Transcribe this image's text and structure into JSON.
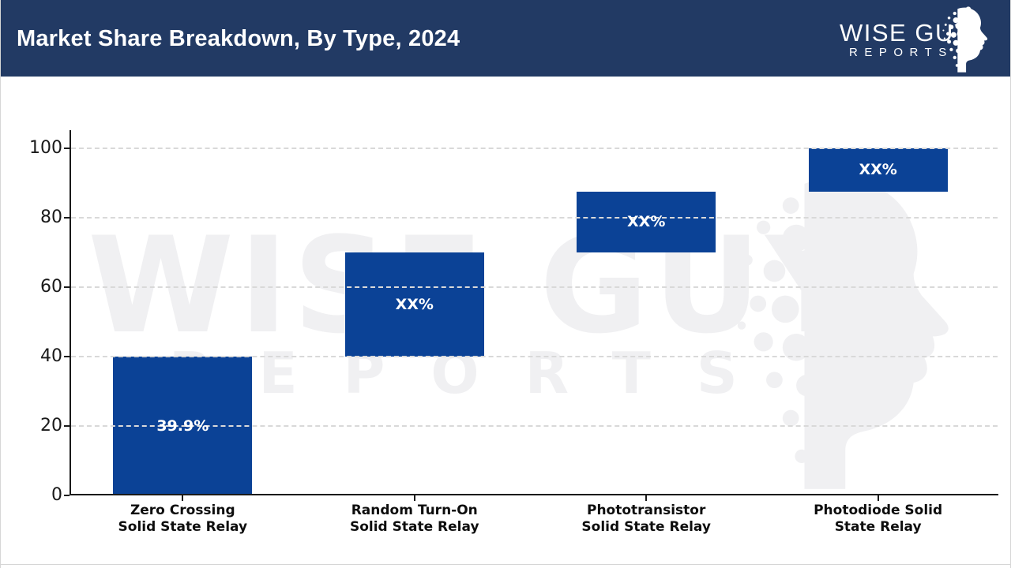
{
  "header": {
    "title": "Market Share Breakdown, By Type, 2024",
    "logo": {
      "name": "WISE GUY",
      "sub": "REPORTS"
    }
  },
  "watermark": {
    "big": "WISE GUY",
    "sub": "REPORTS"
  },
  "chart_data": {
    "type": "bar",
    "subtype": "floating-segment waterfall (cumulative market share)",
    "title": "Market Share Breakdown, By Type, 2024",
    "categories": [
      "Zero Crossing Solid State Relay",
      "Random Turn-On Solid State Relay",
      "Phototransistor Solid State Relay",
      "Photodiode Solid State Relay"
    ],
    "category_label_lines": [
      [
        "Zero Crossing",
        "Solid State Relay"
      ],
      [
        "Random Turn-On",
        "Solid State Relay"
      ],
      [
        "Phototransistor",
        "Solid State Relay"
      ],
      [
        "Photodiode Solid",
        "State Relay"
      ]
    ],
    "segments": [
      {
        "category": "Zero Crossing Solid State Relay",
        "start": 0,
        "end": 40,
        "label": "39.9%"
      },
      {
        "category": "Random Turn-On Solid State Relay",
        "start": 40,
        "end": 70,
        "label": "XX%"
      },
      {
        "category": "Phototransistor Solid State Relay",
        "start": 70,
        "end": 87.5,
        "label": "XX%"
      },
      {
        "category": "Photodiode Solid State Relay",
        "start": 87.5,
        "end": 100,
        "label": "XX%"
      }
    ],
    "ylim": [
      0,
      100
    ],
    "yticks": [
      0,
      20,
      40,
      60,
      80,
      100
    ],
    "xlabel": "",
    "ylabel": "",
    "grid": "horizontal dashed gridlines, drawn above bars",
    "legend": "none",
    "colors": {
      "bar": "#0b4296",
      "bar_label": "#ffffff",
      "grid": "#d9d9d9",
      "axis": "#1a1a1a",
      "header_bg": "#223a64",
      "watermark": "#f0f0f2"
    }
  }
}
